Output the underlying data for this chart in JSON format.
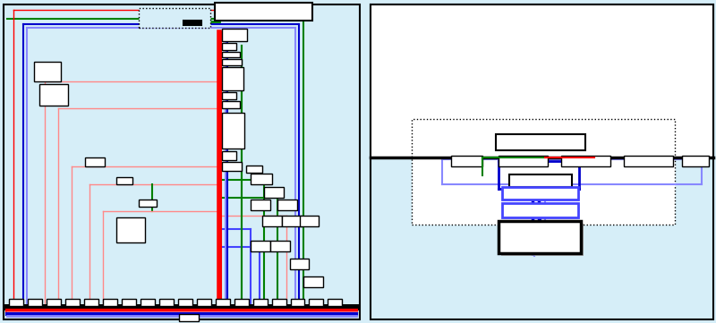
{
  "bg": "#d6eef8",
  "bg_white": "#ffffff",
  "line_red": "#ff0000",
  "line_red_light": "#ff8888",
  "line_blue": "#8888ff",
  "line_blue_dark": "#0000cc",
  "line_blue_med": "#4444ff",
  "line_green": "#008000",
  "line_black": "#000000"
}
